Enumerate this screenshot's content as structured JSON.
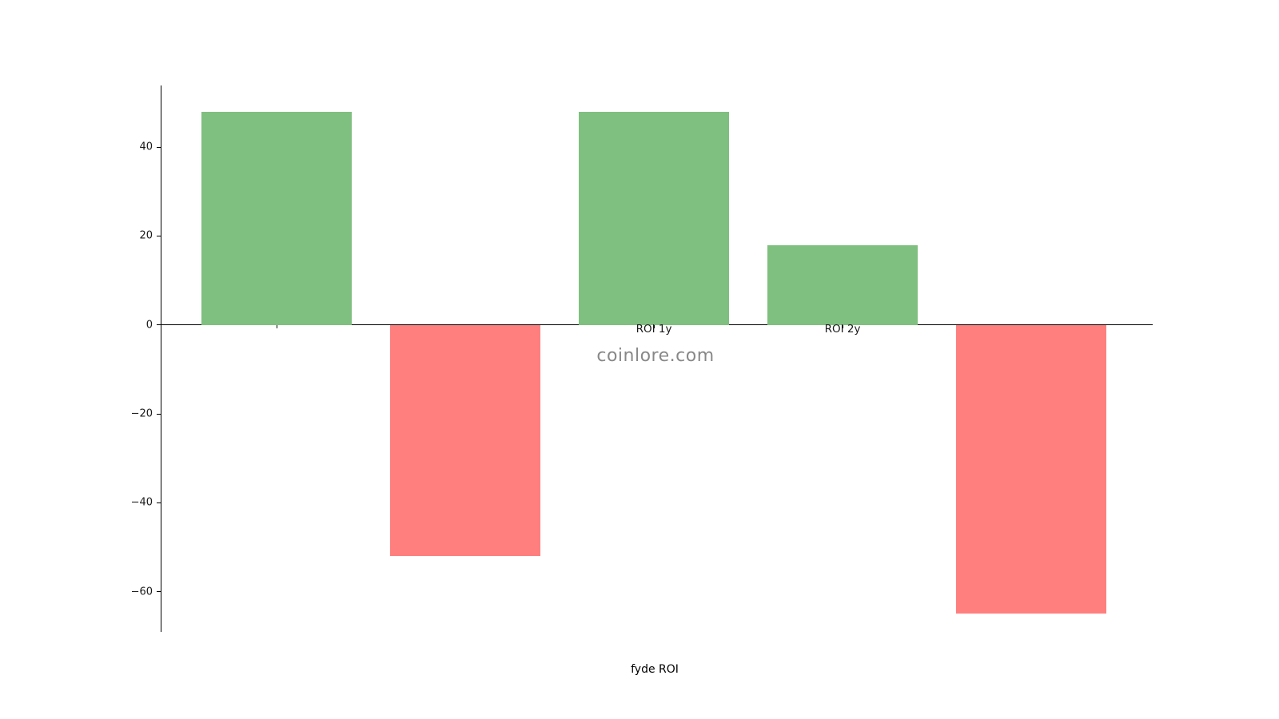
{
  "chart_data": {
    "type": "bar",
    "categories": [
      "",
      "",
      "ROI 1y",
      "ROI 2y",
      ""
    ],
    "values": [
      48,
      -52,
      48,
      18,
      -65
    ],
    "series": [
      {
        "name": "fyde ROI",
        "values": [
          48,
          -52,
          48,
          18,
          -65
        ]
      }
    ],
    "positive_color": "#7fbf7f",
    "negative_color": "#ff7f7f",
    "yticks": [
      40,
      20,
      0,
      -20,
      -40,
      -60
    ],
    "ylim": [
      -69,
      54
    ],
    "title": "",
    "xlabel": "fyde ROI",
    "ylabel": "",
    "grid": false,
    "legend_position": "none"
  },
  "watermark": {
    "text": "coinlore.com",
    "color": "#888888"
  },
  "axis_color": "#000000"
}
